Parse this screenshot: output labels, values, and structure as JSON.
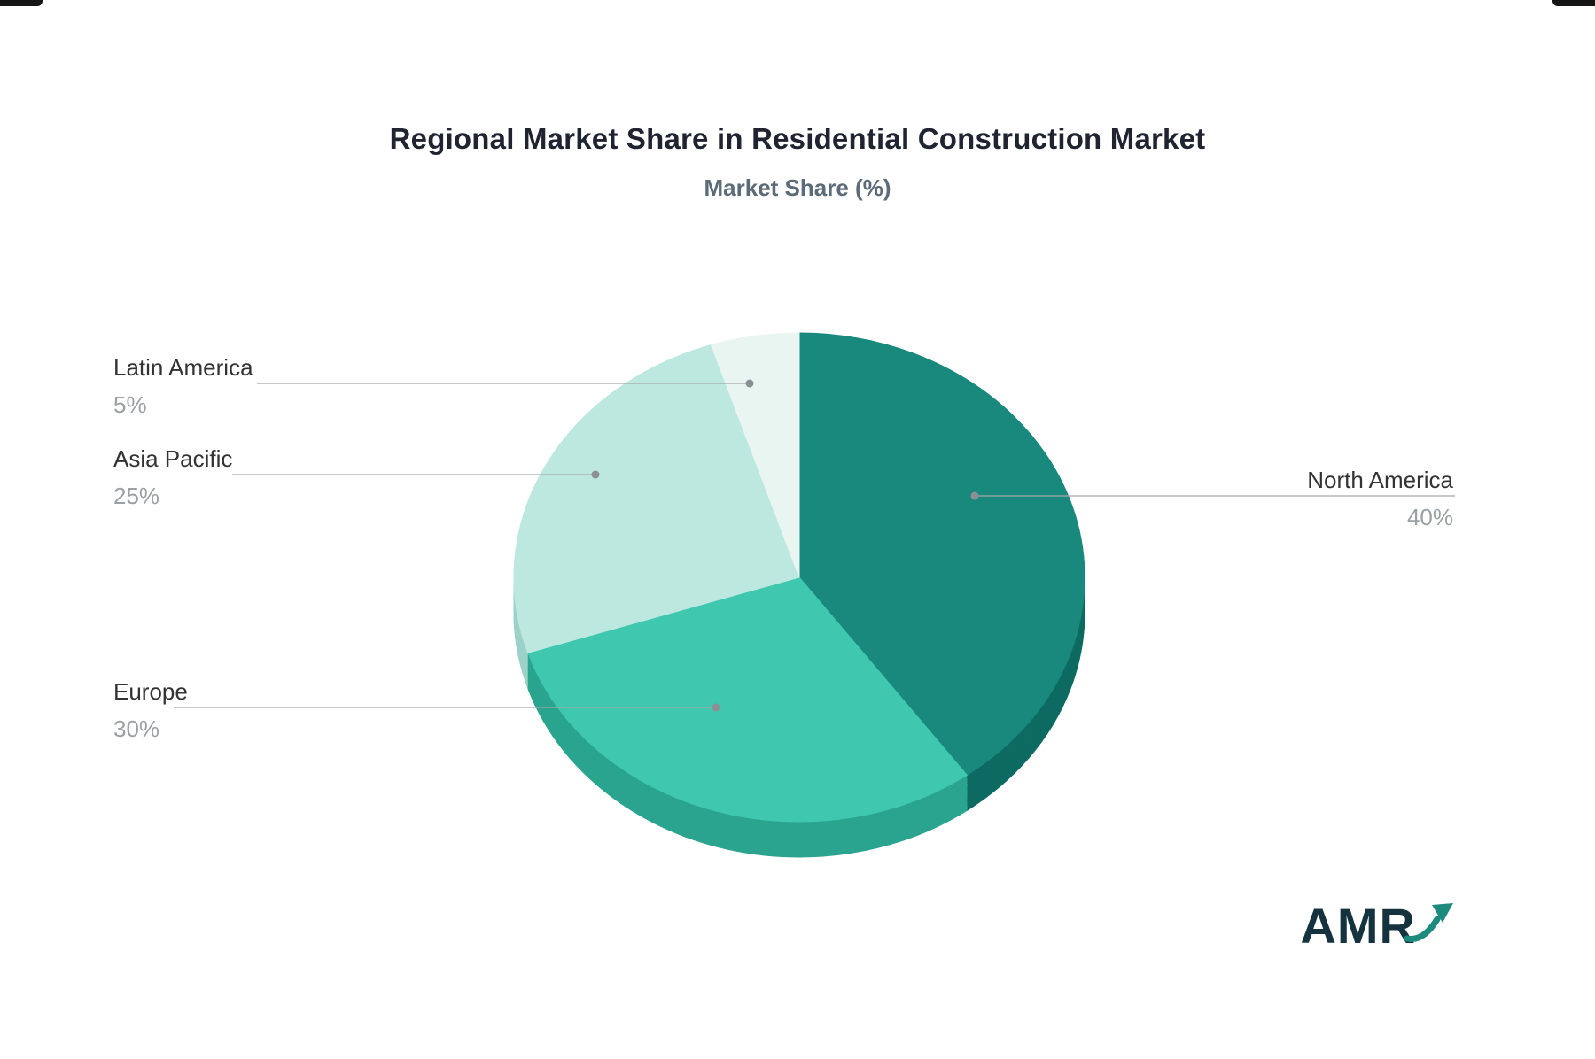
{
  "chart_data": {
    "type": "pie",
    "title": "Regional Market Share in Residential Construction Market",
    "subtitle": "Market Share (%)",
    "unit": "%",
    "categories": [
      "North America",
      "Europe",
      "Asia Pacific",
      "Latin America"
    ],
    "values": [
      40,
      30,
      25,
      5
    ],
    "value_labels": [
      "40%",
      "30%",
      "25%",
      "5%"
    ],
    "colors": [
      "#19887d",
      "#3fc7b0",
      "#bce8e0",
      "#e8f5f1"
    ],
    "side_colors": [
      "#0d6b62",
      "#2aa48f",
      "#9cd2c7",
      "#cfe8e2"
    ],
    "start_angle_deg": -90,
    "direction": "clockwise",
    "legend": "leader-line-labels",
    "label_color": "#333333",
    "value_color": "#9aa0a3",
    "leader_line_color": "#a8a8a8",
    "style": "3d-pie"
  },
  "logo": {
    "text": "AMR",
    "color": "#15333f",
    "arrow_color": "#1d8a7e"
  }
}
